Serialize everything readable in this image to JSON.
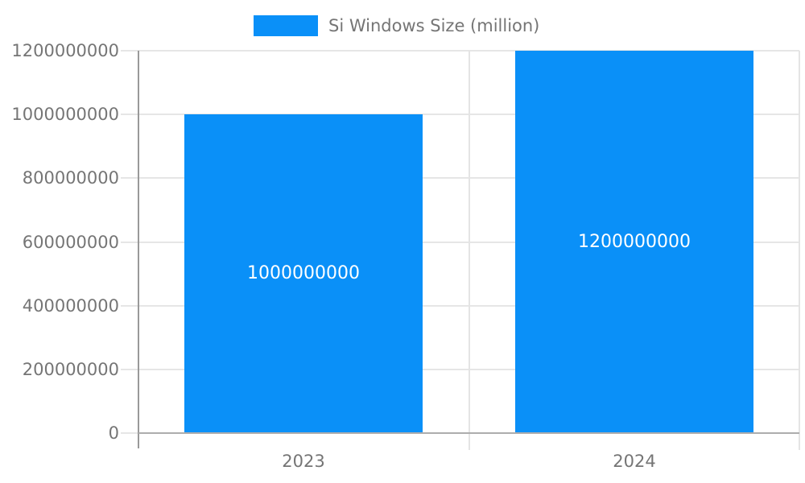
{
  "legend": {
    "label": "Si Windows Size (million)"
  },
  "colors": {
    "bar": "#0A90F8",
    "axis_text": "#757575",
    "bar_label_text": "#FFFFFF",
    "gridline": "#E6E6E6",
    "separator": "#E4E4E4",
    "baseline": "#ADADAD",
    "axis_line": "#999999",
    "background": "#FFFFFF"
  },
  "chart_data": {
    "type": "bar",
    "title": "",
    "categories": [
      "2023",
      "2024"
    ],
    "series": [
      {
        "name": "Si Windows Size (million)",
        "values": [
          1000000000,
          1200000000
        ]
      }
    ],
    "bar_value_labels": [
      "1000000000",
      "1200000000"
    ],
    "yticks": [
      0,
      200000000,
      400000000,
      600000000,
      800000000,
      1000000000,
      1200000000
    ],
    "ytick_labels": [
      "0",
      "200000000",
      "400000000",
      "600000000",
      "800000000",
      "1000000000",
      "1200000000"
    ],
    "ylim": [
      0,
      1200000000
    ],
    "xlabel": "",
    "ylabel": "",
    "grid": true,
    "legend_position": "top-center",
    "bar_label_position": "inside-center"
  }
}
